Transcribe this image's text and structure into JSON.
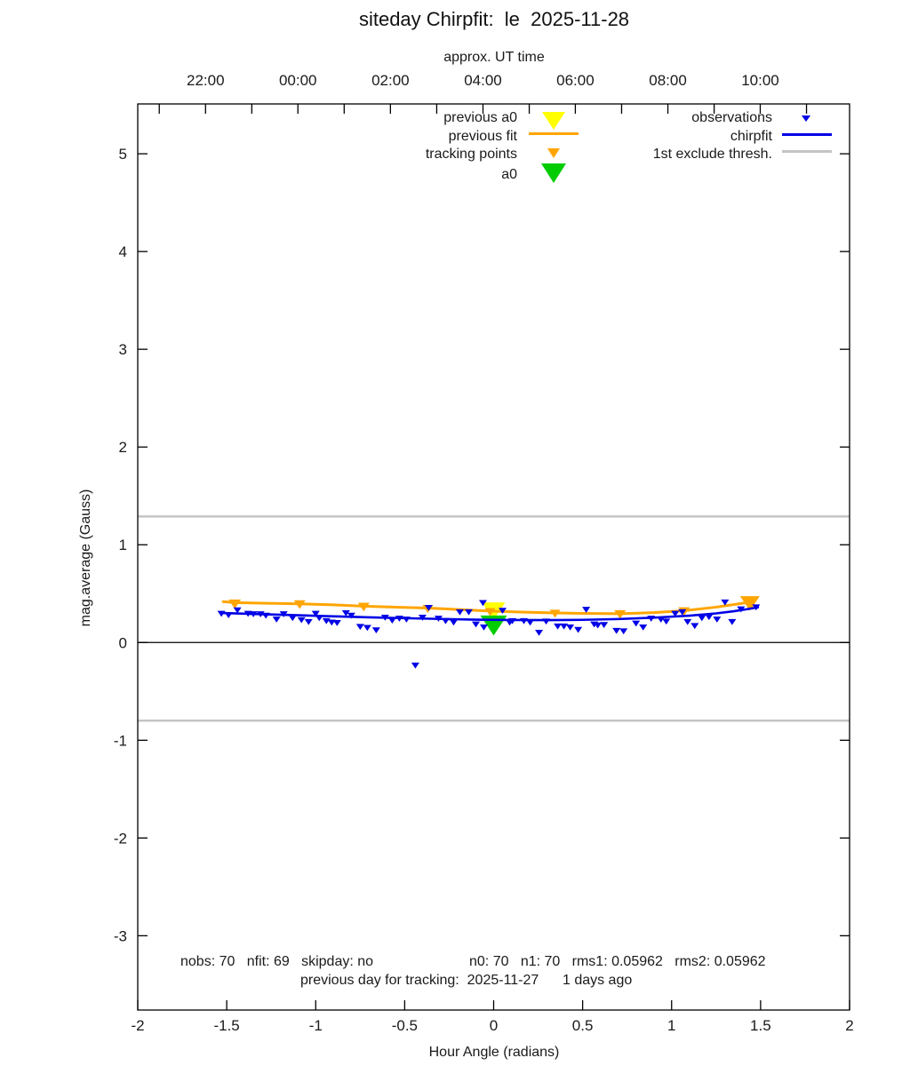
{
  "chart_data": {
    "type": "scatter",
    "title": "siteday Chirpfit:  le  2025-11-28",
    "xlabel": "Hour Angle (radians)",
    "ylabel": "mag.average (Gauss)",
    "x2label": "approx. UT time",
    "xlim": [
      -2,
      2
    ],
    "ylim": [
      -3.76,
      5.51
    ],
    "grid": false,
    "legend_position": "top-inside",
    "x_ticks": [
      -2,
      -1.5,
      -1,
      -0.5,
      0,
      0.5,
      1,
      1.5,
      2
    ],
    "y_ticks": [
      -3,
      -2,
      -1,
      0,
      1,
      2,
      3,
      4,
      5
    ],
    "ut_ticks": [
      {
        "label": "21:00",
        "x": -1.879,
        "labeled": false
      },
      {
        "label": "22:00",
        "x": -1.619,
        "labeled": true
      },
      {
        "label": "23:00",
        "x": -1.359,
        "labeled": false
      },
      {
        "label": "00:00",
        "x": -1.1,
        "labeled": true
      },
      {
        "label": "01:00",
        "x": -0.84,
        "labeled": false
      },
      {
        "label": "02:00",
        "x": -0.58,
        "labeled": true
      },
      {
        "label": "03:00",
        "x": -0.32,
        "labeled": false
      },
      {
        "label": "04:00",
        "x": -0.06,
        "labeled": true
      },
      {
        "label": "05:00",
        "x": 0.2,
        "labeled": false
      },
      {
        "label": "06:00",
        "x": 0.459,
        "labeled": true
      },
      {
        "label": "07:00",
        "x": 0.719,
        "labeled": false
      },
      {
        "label": "08:00",
        "x": 0.979,
        "labeled": true
      },
      {
        "label": "09:00",
        "x": 1.239,
        "labeled": false
      },
      {
        "label": "10:00",
        "x": 1.498,
        "labeled": true
      },
      {
        "label": "11:00",
        "x": 1.758,
        "labeled": false
      }
    ],
    "zero_line_y": 0,
    "exclude_thresholds": [
      1.29,
      -0.8
    ],
    "colors": {
      "observations": "#0000e6",
      "chirpfit": "#0000e6",
      "previous_fit": "#ffa500",
      "tracking_points": "#ffa500",
      "previous_a0": "#ffff00",
      "a0": "#00cc00",
      "threshold": "#c4c4c4",
      "zero_line": "#000000",
      "border": "#000000"
    },
    "series": {
      "observations": {
        "marker": "triangle-down",
        "points": [
          [
            -1.53,
            0.3
          ],
          [
            -1.49,
            0.285
          ],
          [
            -1.44,
            0.335
          ],
          [
            -1.38,
            0.3
          ],
          [
            -1.35,
            0.295
          ],
          [
            -1.31,
            0.295
          ],
          [
            -1.28,
            0.28
          ],
          [
            -1.22,
            0.24
          ],
          [
            -1.18,
            0.295
          ],
          [
            -1.13,
            0.255
          ],
          [
            -1.08,
            0.235
          ],
          [
            -1.04,
            0.215
          ],
          [
            -1.0,
            0.3
          ],
          [
            -0.98,
            0.255
          ],
          [
            -0.94,
            0.225
          ],
          [
            -0.91,
            0.21
          ],
          [
            -0.88,
            0.205
          ],
          [
            -0.83,
            0.305
          ],
          [
            -0.8,
            0.28
          ],
          [
            -0.75,
            0.165
          ],
          [
            -0.71,
            0.155
          ],
          [
            -0.66,
            0.13
          ],
          [
            -0.61,
            0.26
          ],
          [
            -0.57,
            0.23
          ],
          [
            -0.53,
            0.25
          ],
          [
            -0.49,
            0.24
          ],
          [
            -0.44,
            -0.23
          ],
          [
            -0.4,
            0.26
          ],
          [
            -0.365,
            0.36
          ],
          [
            -0.31,
            0.25
          ],
          [
            -0.27,
            0.225
          ],
          [
            -0.225,
            0.21
          ],
          [
            -0.19,
            0.315
          ],
          [
            -0.14,
            0.315
          ],
          [
            -0.1,
            0.19
          ],
          [
            -0.06,
            0.41
          ],
          [
            -0.055,
            0.16
          ],
          [
            0.05,
            0.33
          ],
          [
            0.09,
            0.21
          ],
          [
            0.105,
            0.225
          ],
          [
            0.17,
            0.225
          ],
          [
            0.205,
            0.21
          ],
          [
            0.255,
            0.105
          ],
          [
            0.295,
            0.22
          ],
          [
            0.36,
            0.17
          ],
          [
            0.395,
            0.17
          ],
          [
            0.43,
            0.16
          ],
          [
            0.475,
            0.135
          ],
          [
            0.52,
            0.34
          ],
          [
            0.565,
            0.19
          ],
          [
            0.585,
            0.18
          ],
          [
            0.62,
            0.185
          ],
          [
            0.69,
            0.125
          ],
          [
            0.73,
            0.12
          ],
          [
            0.8,
            0.2
          ],
          [
            0.84,
            0.16
          ],
          [
            0.885,
            0.25
          ],
          [
            0.94,
            0.24
          ],
          [
            0.97,
            0.22
          ],
          [
            1.02,
            0.3
          ],
          [
            1.06,
            0.315
          ],
          [
            1.09,
            0.215
          ],
          [
            1.13,
            0.175
          ],
          [
            1.17,
            0.255
          ],
          [
            1.21,
            0.265
          ],
          [
            1.255,
            0.24
          ],
          [
            1.3,
            0.415
          ],
          [
            1.34,
            0.215
          ],
          [
            1.39,
            0.345
          ],
          [
            1.475,
            0.365
          ]
        ]
      },
      "chirpfit": {
        "line": [
          [
            -1.53,
            0.302
          ],
          [
            -1.3,
            0.289
          ],
          [
            -1.1,
            0.279
          ],
          [
            -0.9,
            0.268
          ],
          [
            -0.7,
            0.258
          ],
          [
            -0.5,
            0.249
          ],
          [
            -0.3,
            0.241
          ],
          [
            -0.1,
            0.234
          ],
          [
            0.1,
            0.23
          ],
          [
            0.3,
            0.229
          ],
          [
            0.5,
            0.232
          ],
          [
            0.7,
            0.24
          ],
          [
            0.9,
            0.254
          ],
          [
            1.1,
            0.275
          ],
          [
            1.25,
            0.298
          ],
          [
            1.35,
            0.32
          ],
          [
            1.42,
            0.34
          ],
          [
            1.485,
            0.36
          ]
        ]
      },
      "previous_fit": {
        "line": [
          [
            -1.52,
            0.418
          ],
          [
            -1.455,
            0.408
          ],
          [
            -1.3,
            0.402
          ],
          [
            -1.09,
            0.396
          ],
          [
            -0.9,
            0.385
          ],
          [
            -0.73,
            0.372
          ],
          [
            -0.55,
            0.362
          ],
          [
            -0.37,
            0.352
          ],
          [
            -0.2,
            0.338
          ],
          [
            -0.02,
            0.322
          ],
          [
            0.15,
            0.311
          ],
          [
            0.345,
            0.303
          ],
          [
            0.5,
            0.298
          ],
          [
            0.71,
            0.295
          ],
          [
            0.9,
            0.306
          ],
          [
            1.07,
            0.325
          ],
          [
            1.25,
            0.362
          ],
          [
            1.44,
            0.413
          ]
        ]
      },
      "tracking_points": {
        "marker": "triangle-down",
        "points": [
          [
            -1.455,
            0.402,
            7
          ],
          [
            -1.09,
            0.397,
            6.5
          ],
          [
            -0.73,
            0.372,
            6.5
          ],
          [
            -0.37,
            0.352,
            6
          ],
          [
            -0.02,
            0.32,
            6
          ],
          [
            0.345,
            0.303,
            6
          ],
          [
            0.71,
            0.295,
            6.5
          ],
          [
            1.07,
            0.325,
            6.5
          ],
          [
            1.44,
            0.414,
            11
          ]
        ]
      },
      "previous_a0": {
        "marker": "triangle-down",
        "point": [
          0,
          0.34
        ],
        "half_width": 13
      },
      "a0": {
        "marker": "triangle-down",
        "point": [
          0,
          0.195
        ],
        "half_width": 15
      }
    },
    "legend": {
      "left": [
        "previous a0",
        "previous fit",
        "tracking points",
        "a0"
      ],
      "right": [
        "observations",
        "chirpfit",
        "1st exclude thresh."
      ]
    }
  },
  "stats": {
    "line1_left": "nobs: 70   nfit: 69   skipday: no",
    "line1_right": "n0: 70   n1: 70   rms1: 0.05962   rms2: 0.05962",
    "line2": "previous day for tracking:  2025-11-27      1 days ago",
    "values": {
      "nobs": 70,
      "nfit": 69,
      "skipday": "no",
      "n0": 70,
      "n1": 70,
      "rms1": 0.05962,
      "rms2": 0.05962,
      "previous_day_for_tracking": "2025-11-27",
      "days_ago": 1
    }
  }
}
